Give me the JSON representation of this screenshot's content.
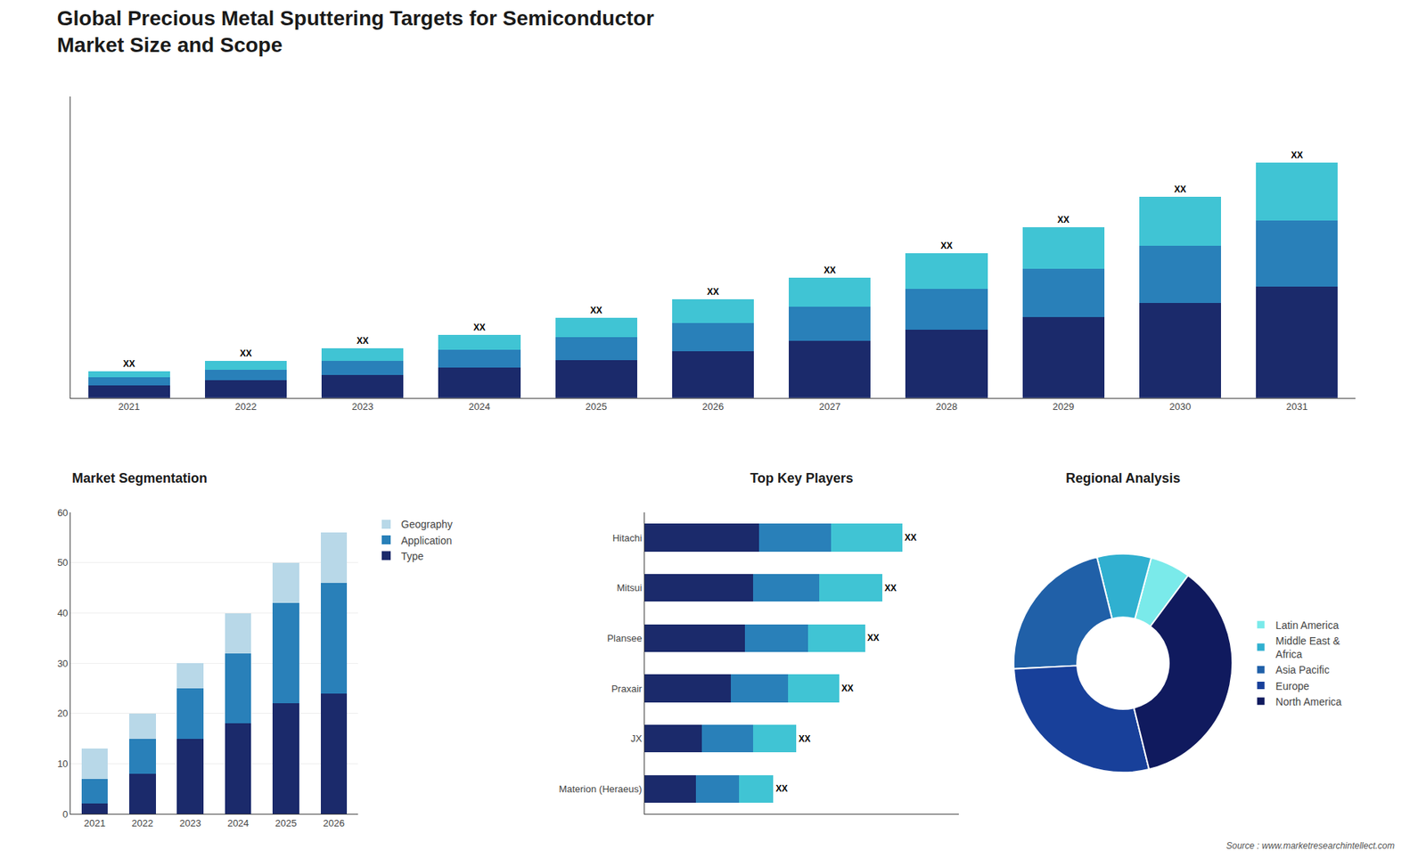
{
  "chart_data": [
    {
      "type": "bar",
      "title": "Global Precious Metal Sputtering Targets for Semiconductor\nMarket Size and Scope",
      "annotations": [
        "Source : www.marketresearchintellect.com"
      ],
      "categories": [
        "2021",
        "2022",
        "2023",
        "2024",
        "2025",
        "2026",
        "2027",
        "2028",
        "2029",
        "2030",
        "2031"
      ],
      "series": [
        {
          "color": "#1b2a6b",
          "values": [
            1.0,
            1.4,
            1.8,
            2.4,
            3.0,
            3.7,
            4.5,
            5.4,
            6.4,
            7.5,
            8.8
          ]
        },
        {
          "color": "#2980b9",
          "values": [
            0.6,
            0.8,
            1.1,
            1.4,
            1.8,
            2.2,
            2.7,
            3.2,
            3.8,
            4.5,
            5.2
          ]
        },
        {
          "color": "#40c4d4",
          "values": [
            0.5,
            0.7,
            1.0,
            1.2,
            1.5,
            1.9,
            2.3,
            2.8,
            3.3,
            3.9,
            4.6
          ],
          "value_labels": [
            "XX",
            "XX",
            "XX",
            "XX",
            "XX",
            "XX",
            "XX",
            "XX",
            "XX",
            "XX",
            "XX"
          ]
        }
      ],
      "stacked": true,
      "data_labels": true,
      "ylim": [
        0,
        23.808
      ],
      "yticks": [],
      "tick_labels": "x",
      "grid": false
    },
    {
      "type": "bar",
      "title": "Market Segmentation",
      "categories": [
        "2021",
        "2022",
        "2023",
        "2024",
        "2025",
        "2026"
      ],
      "series": [
        {
          "name": "Type",
          "color": "#1b2a6b",
          "values": [
            2,
            8,
            15,
            18,
            22,
            24
          ]
        },
        {
          "name": "Application",
          "color": "#2980b9",
          "values": [
            5,
            7,
            10,
            14,
            20,
            22
          ]
        },
        {
          "name": "Geography",
          "color": "#b8d8e8",
          "values": [
            6,
            5,
            5,
            8,
            8,
            10
          ]
        }
      ],
      "stacked": true,
      "ylim": [
        0,
        60
      ],
      "yticks": [
        0,
        10,
        20,
        30,
        40,
        50,
        60
      ],
      "grid": true,
      "legend": "right"
    },
    {
      "type": "bar",
      "title": "Top Key Players",
      "orientation": "horizontal",
      "categories": [
        "Hitachi",
        "Mitsui",
        "Plansee",
        "Praxair",
        "JX",
        "Materion (Heraeus)"
      ],
      "series": [
        {
          "color": "#1b2a6b",
          "values": [
            4.0,
            3.8,
            3.5,
            3.0,
            2.0,
            1.8
          ]
        },
        {
          "color": "#2980b9",
          "values": [
            2.5,
            2.3,
            2.2,
            2.0,
            1.8,
            1.5
          ]
        },
        {
          "color": "#40c4d4",
          "values": [
            2.5,
            2.2,
            2.0,
            1.8,
            1.5,
            1.2
          ],
          "value_labels": [
            "XX",
            "XX",
            "XX",
            "XX",
            "XX",
            "XX"
          ]
        }
      ],
      "stacked": true,
      "data_labels": true,
      "xlim": [
        0,
        10.98
      ],
      "xticks": [],
      "tick_labels": "y",
      "grid": false
    },
    {
      "type": "pie",
      "title": "Regional Analysis",
      "categories": [
        "Latin America",
        "Middle East &\nAfrica",
        "Asia Pacific",
        "Europe",
        "North America"
      ],
      "values": [
        6,
        8,
        22,
        28,
        36
      ],
      "colors": [
        "#7aeaea",
        "#30b0d0",
        "#2060a8",
        "#18409a",
        "#101a5e"
      ],
      "legend": "right"
    }
  ]
}
